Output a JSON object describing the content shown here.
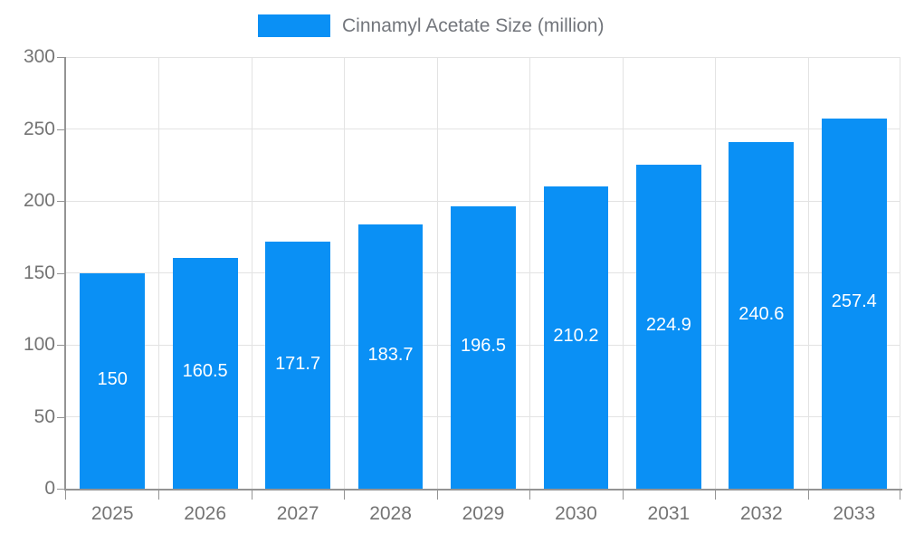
{
  "chart_data": {
    "type": "bar",
    "title": "",
    "legend": {
      "label": "Cinnamyl Acetate Size (million)",
      "position": "top-center"
    },
    "categories": [
      "2025",
      "2026",
      "2027",
      "2028",
      "2029",
      "2030",
      "2031",
      "2032",
      "2033"
    ],
    "series": [
      {
        "name": "Cinnamyl Acetate Size (million)",
        "values": [
          150,
          160.5,
          171.7,
          183.7,
          196.5,
          210.2,
          224.9,
          240.6,
          257.4
        ],
        "data_labels": [
          "150",
          "160.5",
          "171.7",
          "183.7",
          "196.5",
          "210.2",
          "224.9",
          "240.6",
          "257.4"
        ]
      }
    ],
    "xlabel": "",
    "ylabel": "",
    "ylim": [
      0,
      300
    ],
    "yticks": [
      0,
      50,
      100,
      150,
      200,
      250,
      300
    ],
    "grid": true,
    "data_label_position": "inside-center",
    "colors": {
      "bar": "#0a90f5",
      "bar_label_text": "#ffffff",
      "axis_line": "#949494",
      "gridline": "#e3e3e3",
      "tick_text": "#747474",
      "legend_text": "#73767c",
      "background": "#ffffff"
    }
  }
}
